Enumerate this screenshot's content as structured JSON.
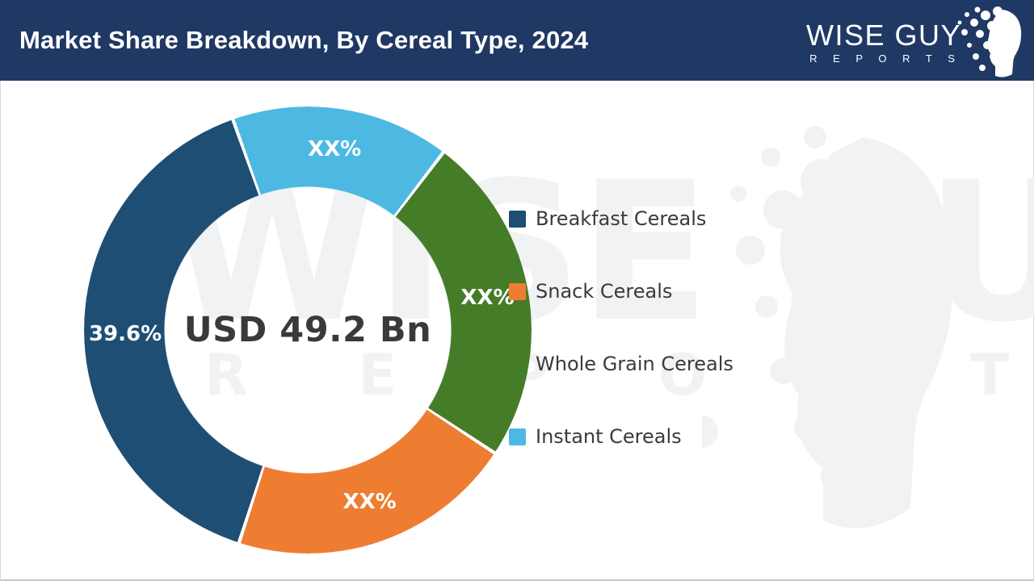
{
  "header": {
    "title": "Market Share Breakdown, By Cereal Type, 2024",
    "bg_color": "#1f3864",
    "logo": {
      "line1": "WISE GUY",
      "line2": "R E P O R T S"
    }
  },
  "watermark": {
    "line1": "WISE GUY",
    "line2": "R E P O R T S"
  },
  "chart_data": {
    "type": "donut",
    "title": "Market Share Breakdown, By Cereal Type, 2024",
    "center_label": "USD 49.2 Bn",
    "start_angle_css_deg": -20,
    "separator_deg": 0.9,
    "legend_position": "right",
    "segments": [
      {
        "name": "Instant Cereals",
        "displayed_label": "XX%",
        "value_pct_est": 15.8,
        "color": "#4db9e3"
      },
      {
        "name": "Whole Grain Cereals",
        "displayed_label": "XX%",
        "value_pct_est": 23.9,
        "color": "#457c28"
      },
      {
        "name": "Snack Cereals",
        "displayed_label": "XX%",
        "value_pct_est": 20.7,
        "color": "#ee7d31"
      },
      {
        "name": "Breakfast Cereals",
        "displayed_label": "39.6%",
        "value_pct_est": 39.6,
        "color": "#1f4e74"
      }
    ],
    "legend_order": [
      "Breakfast Cereals",
      "Snack Cereals",
      "Whole Grain Cereals",
      "Instant Cereals"
    ]
  }
}
